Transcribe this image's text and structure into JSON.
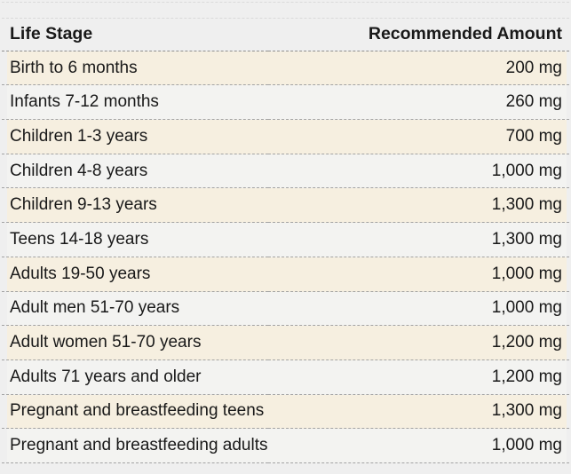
{
  "colors": {
    "page-bg": "#efefef",
    "cream": "#f6efe0",
    "plain": "#f3f3f1",
    "dash": "#a3a3a3",
    "dash-strong": "#8f8f8f",
    "dash-faint": "#dadada",
    "text": "#191919"
  },
  "table": {
    "columns": [
      {
        "label": "Life Stage"
      },
      {
        "label": "Recommended Amount"
      }
    ],
    "rows": [
      {
        "life_stage": "Birth to 6 months",
        "amount": "200 mg"
      },
      {
        "life_stage": "Infants 7-12 months",
        "amount": "260 mg"
      },
      {
        "life_stage": "Children 1-3 years",
        "amount": "700 mg"
      },
      {
        "life_stage": "Children 4-8 years",
        "amount": "1,000 mg"
      },
      {
        "life_stage": "Children 9-13 years",
        "amount": "1,300 mg"
      },
      {
        "life_stage": "Teens 14-18 years",
        "amount": "1,300 mg"
      },
      {
        "life_stage": "Adults 19-50 years",
        "amount": "1,000 mg"
      },
      {
        "life_stage": "Adult men 51-70 years",
        "amount": "1,000 mg"
      },
      {
        "life_stage": "Adult women 51-70 years",
        "amount": "1,200 mg"
      },
      {
        "life_stage": "Adults 71 years and older",
        "amount": "1,200 mg"
      },
      {
        "life_stage": "Pregnant and breastfeeding teens",
        "amount": "1,300 mg"
      },
      {
        "life_stage": "Pregnant and breastfeeding adults",
        "amount": "1,000 mg"
      }
    ]
  },
  "chart_data": {
    "type": "table",
    "columns": [
      "Life Stage",
      "Recommended Amount"
    ],
    "rows": [
      [
        "Birth to 6 months",
        "200 mg"
      ],
      [
        "Infants 7-12 months",
        "260 mg"
      ],
      [
        "Children 1-3 years",
        "700 mg"
      ],
      [
        "Children 4-8 years",
        "1,000 mg"
      ],
      [
        "Children 9-13 years",
        "1,300 mg"
      ],
      [
        "Teens 14-18 years",
        "1,300 mg"
      ],
      [
        "Adults 19-50 years",
        "1,000 mg"
      ],
      [
        "Adult men 51-70 years",
        "1,000 mg"
      ],
      [
        "Adult women 51-70 years",
        "1,200 mg"
      ],
      [
        "Adults 71 years and older",
        "1,200 mg"
      ],
      [
        "Pregnant and breastfeeding teens",
        "1,300 mg"
      ],
      [
        "Pregnant and breastfeeding adults",
        "1,000 mg"
      ]
    ],
    "values_mg": [
      200,
      260,
      700,
      1000,
      1300,
      1300,
      1000,
      1000,
      1200,
      1200,
      1300,
      1000
    ],
    "unit": "mg",
    "title": "",
    "layout": {
      "striped": true,
      "separator": "dashed",
      "amount_alignment": "right"
    }
  }
}
